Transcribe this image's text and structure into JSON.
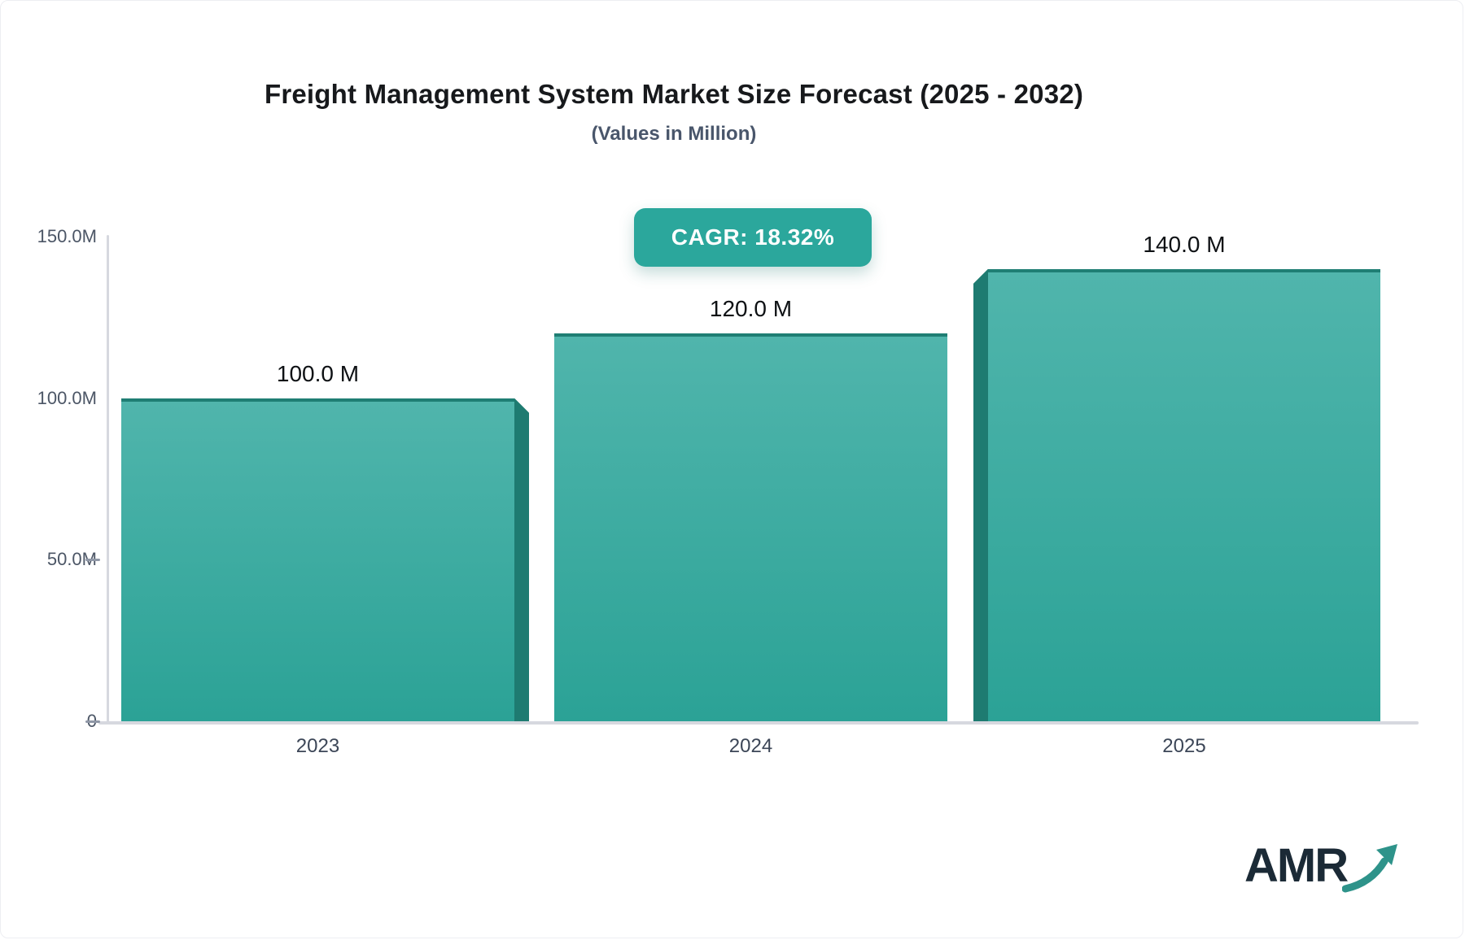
{
  "header": {
    "title": "Freight Management System Market Size Forecast (2025 - 2032)",
    "subtitle": "(Values in Million)"
  },
  "badge": {
    "label": "CAGR: 18.32%"
  },
  "chart_data": {
    "type": "bar",
    "title": "Freight Management System Market Size Forecast (2025 - 2032)",
    "subtitle": "(Values in Million)",
    "categories": [
      "2023",
      "2024",
      "2025"
    ],
    "values": [
      100,
      120,
      140
    ],
    "value_labels": [
      "100.0 M",
      "120.0 M",
      "140.0 M"
    ],
    "unit": "Million",
    "ylim": [
      0,
      150
    ],
    "y_ticks": [
      {
        "value": 150,
        "label": "150.0M",
        "dash": false
      },
      {
        "value": 100,
        "label": "100.0M",
        "dash": false
      },
      {
        "value": 50,
        "label": "50.0M",
        "dash": true
      },
      {
        "value": 0,
        "label": "0",
        "dash": true
      }
    ],
    "cagr": "18.32%",
    "legend": null,
    "grid": false,
    "bar_color_top": "#50b5ac",
    "bar_color_bottom": "#2ba296",
    "bar_top_edge_color": "#1f7e74",
    "bar_extrude_color": "#1e7b71",
    "axis_color": "#d6d8df"
  },
  "logo": {
    "text": "AMR"
  }
}
